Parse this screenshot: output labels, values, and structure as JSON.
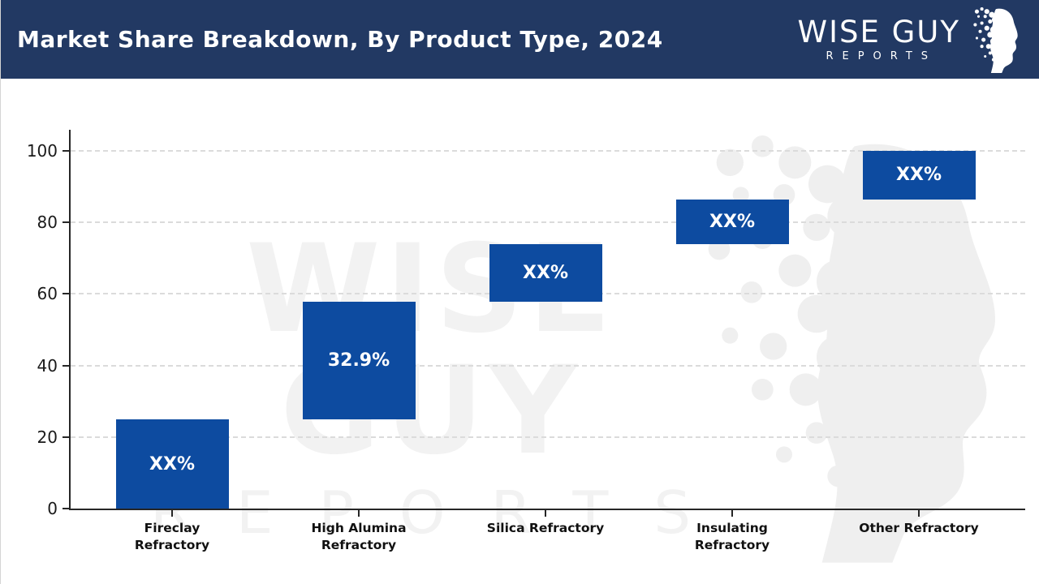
{
  "header": {
    "title": "Market Share Breakdown, By Product Type, 2024",
    "bg_color": "#223963",
    "logo": {
      "line1": "WISE GUY",
      "line2": "REPORTS"
    }
  },
  "watermark": {
    "line1": "WISE GUY",
    "line2": "REPORTS"
  },
  "chart_data": {
    "type": "bar",
    "variant": "floating-segment-waterfall",
    "title": "Market Share Breakdown, By Product Type, 2024",
    "categories": [
      "Fireclay Refractory",
      "High Alumina Refractory",
      "Silica Refractory",
      "Insulating Refractory",
      "Other Refractory"
    ],
    "category_lines": [
      [
        "Fireclay",
        "Refractory"
      ],
      [
        "High Alumina",
        "Refractory"
      ],
      [
        "Silica Refractory"
      ],
      [
        "Insulating",
        "Refractory"
      ],
      [
        "Other Refractory"
      ]
    ],
    "bars": [
      {
        "category": "Fireclay Refractory",
        "start": 0,
        "end": 24.9,
        "label": "XX%"
      },
      {
        "category": "High Alumina Refractory",
        "start": 24.9,
        "end": 57.8,
        "label": "32.9%"
      },
      {
        "category": "Silica Refractory",
        "start": 57.8,
        "end": 73.9,
        "label": "XX%"
      },
      {
        "category": "Insulating Refractory",
        "start": 73.9,
        "end": 86.5,
        "label": "XX%"
      },
      {
        "category": "Other Refractory",
        "start": 86.5,
        "end": 100,
        "label": "XX%"
      }
    ],
    "ylim": [
      0,
      100
    ],
    "yticks": [
      0,
      20,
      40,
      60,
      80,
      100
    ],
    "xlabel": "",
    "ylabel": "",
    "bar_color": "#0D4BA0",
    "bar_label_color": "#FFFFFF",
    "grid": {
      "horizontal": true,
      "style": "dashed",
      "color": "#DBDBDB"
    },
    "axis_color": "#262626",
    "legend": null
  }
}
